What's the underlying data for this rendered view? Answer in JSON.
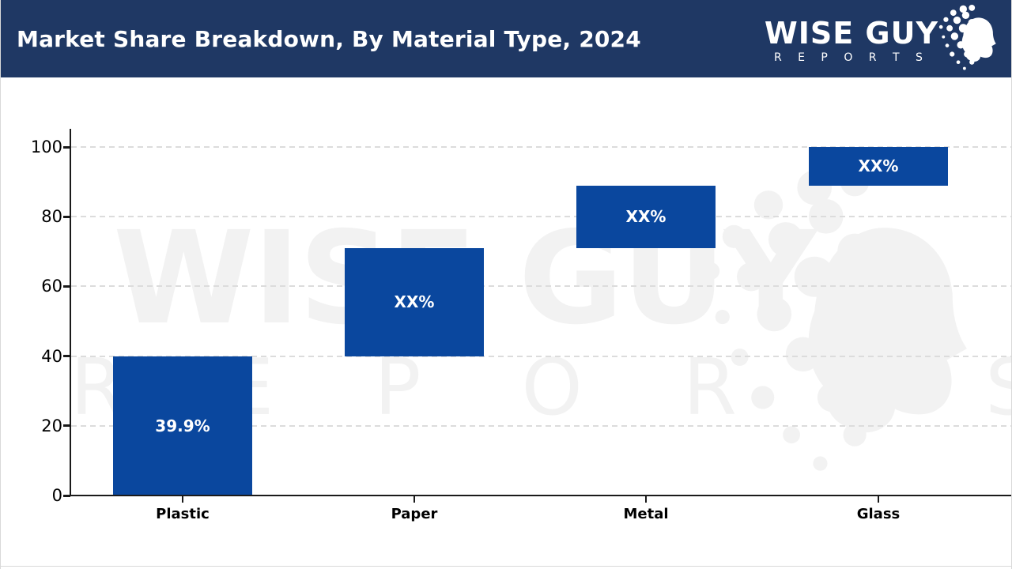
{
  "header": {
    "title": "Market Share Breakdown, By Material Type, 2024",
    "logo": {
      "name_line": "WISE GUY",
      "sub_line": "R E P O R T S"
    }
  },
  "watermark": {
    "line1": "WISE GUY",
    "line2": "R E P O R T S"
  },
  "colors": {
    "header_bg": "#1f3864",
    "bar": "#0a479e",
    "bar_label": "#ffffff",
    "axis": "#1a1a1a",
    "tick_label": "#000000",
    "grid": "#dcdcdc",
    "watermark": "#f2f2f2",
    "title_text": "#ffffff"
  },
  "chart_data": {
    "type": "bar",
    "variant": "waterfall",
    "title": "Market Share Breakdown, By Material Type, 2024",
    "categories": [
      "Plastic",
      "Paper",
      "Metal",
      "Glass"
    ],
    "segments": [
      {
        "category": "Plastic",
        "start": 0,
        "end": 39.9,
        "label": "39.9%",
        "value": 39.9
      },
      {
        "category": "Paper",
        "start": 39.9,
        "end": 71,
        "label": "XX%",
        "value_estimate": 31.1
      },
      {
        "category": "Metal",
        "start": 71,
        "end": 89,
        "label": "XX%",
        "value_estimate": 18
      },
      {
        "category": "Glass",
        "start": 89,
        "end": 100,
        "label": "XX%",
        "value_estimate": 11
      }
    ],
    "xlabel": "",
    "ylabel": "",
    "ylim": [
      0,
      105
    ],
    "yticks": [
      0,
      20,
      40,
      60,
      80,
      100
    ],
    "grid": "horizontal-dashed",
    "legend": "none",
    "units": "percent"
  }
}
